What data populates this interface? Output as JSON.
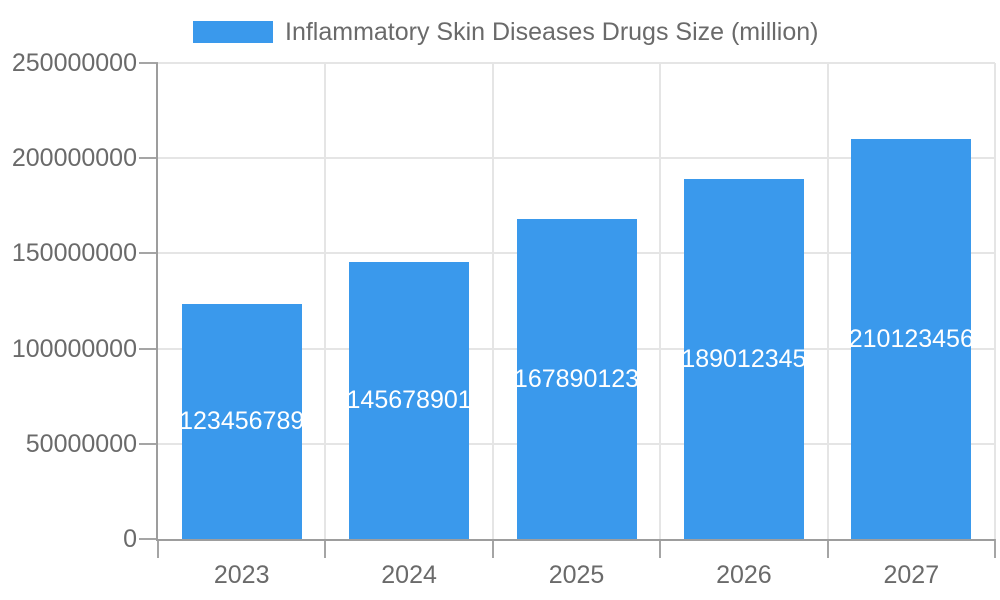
{
  "legend": {
    "label": "Inflammatory Skin Diseases Drugs Size (million)"
  },
  "colors": {
    "bar": "#3a99ec",
    "grid": "#e5e5e5",
    "axis": "#9d9d9d",
    "tick": "#a5a5a5",
    "text": "#6a6a6a",
    "value_label": "#ffffff",
    "background": "#ffffff"
  },
  "chart_data": {
    "type": "bar",
    "title": "Inflammatory Skin Diseases Drugs Size (million)",
    "series_name": "Inflammatory Skin Diseases Drugs Size (million)",
    "categories": [
      "2023",
      "2024",
      "2025",
      "2026",
      "2027"
    ],
    "values": [
      123456789,
      145678901,
      167890123,
      189012345,
      210123456
    ],
    "value_labels": [
      "123456789",
      "145678901",
      "167890123",
      "189012345",
      "210123456"
    ],
    "xlabel": "",
    "ylabel": "",
    "ylim": [
      0,
      250000000
    ],
    "ytick_interval": 50000000,
    "yticks": [
      0,
      50000000,
      100000000,
      150000000,
      200000000,
      250000000
    ],
    "ytick_labels": [
      "0",
      "50000000",
      "100000000",
      "150000000",
      "200000000",
      "250000000"
    ],
    "grid": true,
    "legend_position": "top-center",
    "value_label_position": "inside-center"
  }
}
